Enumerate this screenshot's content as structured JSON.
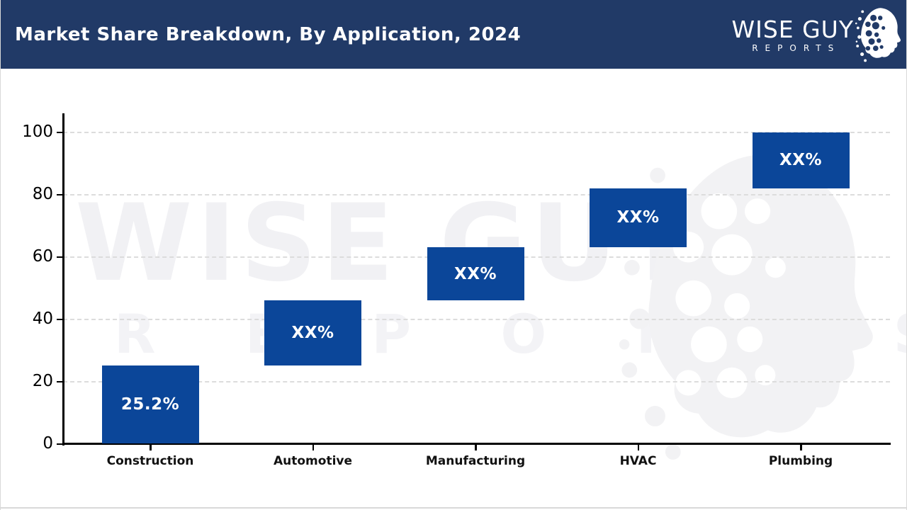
{
  "header": {
    "title": "Market Share Breakdown, By Application, 2024",
    "logo": {
      "line1": "WISE GUY",
      "line2": "REPORTS"
    }
  },
  "watermark": {
    "line1": "WISE GUY",
    "line2": "REPORTS"
  },
  "colors": {
    "header_bg": "#213a67",
    "bar": "#0b4699",
    "bar_label_text": "#ffffff",
    "gridline": "#dcdcdc",
    "axis": "#000000",
    "watermark": "#f2f2f4"
  },
  "chart_data": {
    "type": "bar",
    "subtype": "waterfall",
    "title": "Market Share Breakdown, By Application, 2024",
    "xlabel": "",
    "ylabel": "",
    "ylim": [
      0,
      100
    ],
    "yticks": [
      0,
      20,
      40,
      60,
      80,
      100
    ],
    "grid": "horizontal dashed",
    "legend": "none",
    "categories": [
      "Construction",
      "Automotive",
      "Manufacturing",
      "HVAC",
      "Plumbing"
    ],
    "series": [
      {
        "name": "Market Share",
        "segments": [
          {
            "category": "Construction",
            "start": 0,
            "end": 25.2,
            "label": "25.2%"
          },
          {
            "category": "Automotive",
            "start": 25.2,
            "end": 46,
            "label": "XX%"
          },
          {
            "category": "Manufacturing",
            "start": 46,
            "end": 63,
            "label": "XX%"
          },
          {
            "category": "HVAC",
            "start": 63,
            "end": 82,
            "label": "XX%"
          },
          {
            "category": "Plumbing",
            "start": 82,
            "end": 100,
            "label": "XX%"
          }
        ]
      }
    ]
  }
}
